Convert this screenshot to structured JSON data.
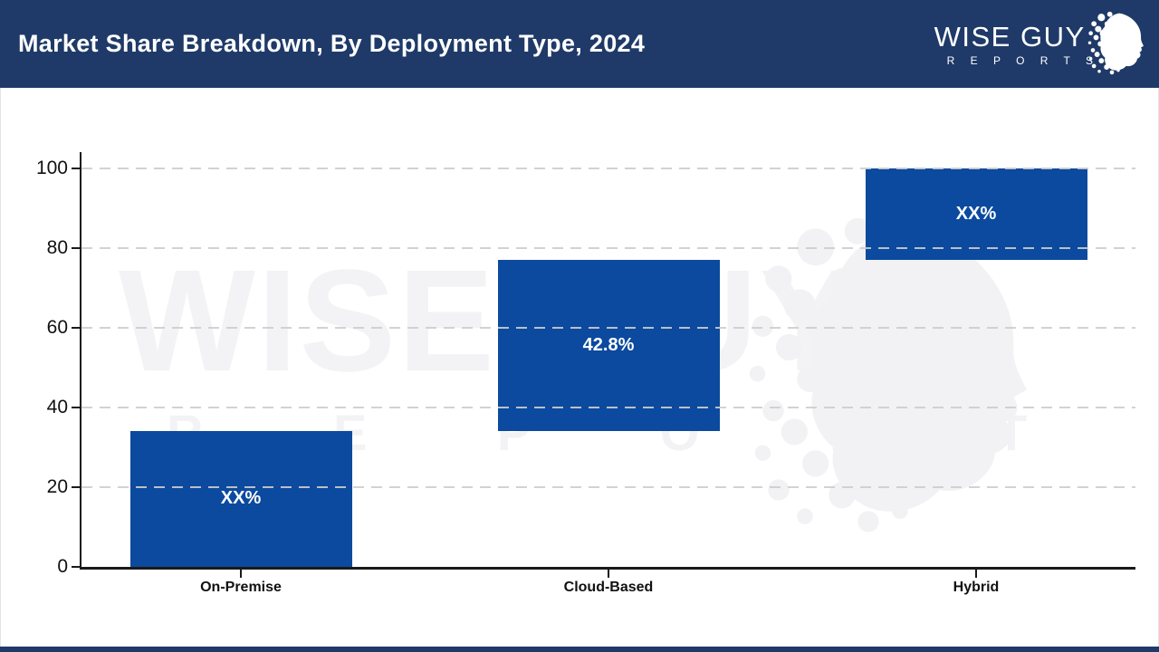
{
  "header": {
    "title": "Market Share Breakdown, By Deployment Type, 2024",
    "bg_color": "#1F3A68",
    "logo": {
      "name": "WISE GUY REPORTS",
      "line1": "WISE GUY",
      "line2": "R E P O R T S"
    }
  },
  "chart_data": {
    "type": "bar",
    "variant": "floating-segment",
    "title": "Market Share Breakdown, By Deployment Type, 2024",
    "categories": [
      "On-Premise",
      "Cloud-Based",
      "Hybrid"
    ],
    "segments": [
      {
        "category": "On-Premise",
        "start": 0,
        "end": 34.2,
        "value_label": "XX%"
      },
      {
        "category": "Cloud-Based",
        "start": 34.2,
        "end": 77.0,
        "value_label": "42.8%"
      },
      {
        "category": "Hybrid",
        "start": 77.0,
        "end": 100.0,
        "value_label": "XX%"
      }
    ],
    "ylim": [
      0,
      100
    ],
    "yticks": [
      0,
      20,
      40,
      60,
      80,
      100
    ],
    "xlabel": "",
    "ylabel": "",
    "grid": "horizontal-dashed",
    "legend": "none",
    "bar_color": "#0B4A9E",
    "value_label_color": "#FFFFFF"
  },
  "watermark": {
    "line1": "WISE GUY",
    "line2": "R E P O R T S"
  },
  "footer": {
    "bg_color": "#1F3A68"
  }
}
